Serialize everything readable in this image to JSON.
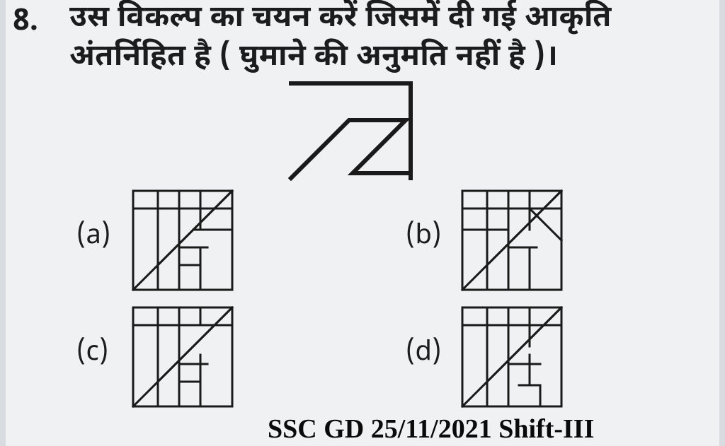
{
  "question": {
    "number": "8.",
    "line1": "उस विकल्प का चयन करें जिसमें दी गई आकृति",
    "line2": "अंतर्निहित है ( घुमाने की अनुमति नहीं है )।"
  },
  "options": {
    "a": {
      "label": "(a)"
    },
    "b": {
      "label": "(b)"
    },
    "c": {
      "label": "(c)"
    },
    "d": {
      "label": "(d)"
    }
  },
  "source": "SSC GD 25/11/2021 Shift-III",
  "style": {
    "stroke": "#1a1a1a",
    "mainStrokeWidth": 6,
    "optStrokeWidth": 3,
    "bgColor": "#eff1f3"
  },
  "figure": {
    "main": {
      "width": 185,
      "height": 150,
      "paths": [
        "M 8 8 L 177 8 L 177 142",
        "M 8 142 L 90 60 L 170 60 L 95 135 L 172 135"
      ]
    },
    "optA": {
      "size": 150,
      "lines": [
        "M 5 5 H 145 V 145 H 5 Z",
        "M 40 5 V 145",
        "M 70 5 V 145",
        "M 5 30 H 145",
        "M 5 145 L 145 5",
        "M 40 110 L 145 5",
        "M 90 60 H 145",
        "M 70 85 H 110",
        "M 70 110 H 100",
        "M 100 5 V 60",
        "M 100 85 V 145"
      ]
    },
    "optB": {
      "size": 150,
      "lines": [
        "M 5 5 H 145 V 145 H 5 Z",
        "M 40 5 V 145",
        "M 70 5 V 145",
        "M 5 30 H 145",
        "M 5 60 H 70",
        "M 5 145 L 145 5",
        "M 40 110 L 145 5",
        "M 70 85 H 110",
        "M 100 5 V 60",
        "M 100 30 L 145 75",
        "M 100 85 V 145"
      ]
    },
    "optC": {
      "size": 150,
      "lines": [
        "M 5 5 H 145 V 145 H 5 Z",
        "M 40 5 V 145",
        "M 70 5 V 145",
        "M 5 30 H 145",
        "M 5 145 L 145 5",
        "M 40 110 L 145 5",
        "M 70 85 H 110",
        "M 70 110 H 100",
        "M 100 5 V 30",
        "M 100 72 V 145"
      ]
    },
    "optD": {
      "size": 150,
      "lines": [
        "M 5 5 H 145 V 145 H 5 Z",
        "M 40 5 V 145",
        "M 70 5 V 145",
        "M 5 30 H 145",
        "M 5 145 L 145 5",
        "M 40 110 L 145 5",
        "M 70 85 H 115",
        "M 85 115 H 115 V 145",
        "M 100 5 V 60",
        "M 100 72 V 115"
      ]
    }
  }
}
